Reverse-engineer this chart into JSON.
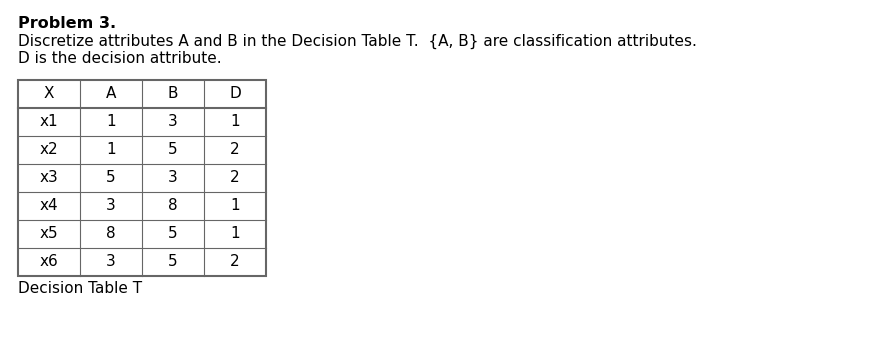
{
  "title": "Problem 3.",
  "subtitle_line1": "Discretize attributes A and B in the Decision Table T.  {A, B} are classification attributes.",
  "subtitle_line2": "D is the decision attribute.",
  "table_caption": "Decision Table T",
  "col_headers": [
    "X",
    "A",
    "B",
    "D"
  ],
  "rows": [
    [
      "x1",
      "1",
      "3",
      "1"
    ],
    [
      "x2",
      "1",
      "5",
      "2"
    ],
    [
      "x3",
      "5",
      "3",
      "2"
    ],
    [
      "x4",
      "3",
      "8",
      "1"
    ],
    [
      "x5",
      "8",
      "5",
      "1"
    ],
    [
      "x6",
      "3",
      "5",
      "2"
    ]
  ],
  "bg_color": "#ffffff",
  "text_color": "#000000",
  "table_line_color": "#666666",
  "title_fontsize": 11.5,
  "body_fontsize": 11,
  "table_fontsize": 11,
  "fig_width": 8.85,
  "fig_height": 3.64,
  "dpi": 100
}
